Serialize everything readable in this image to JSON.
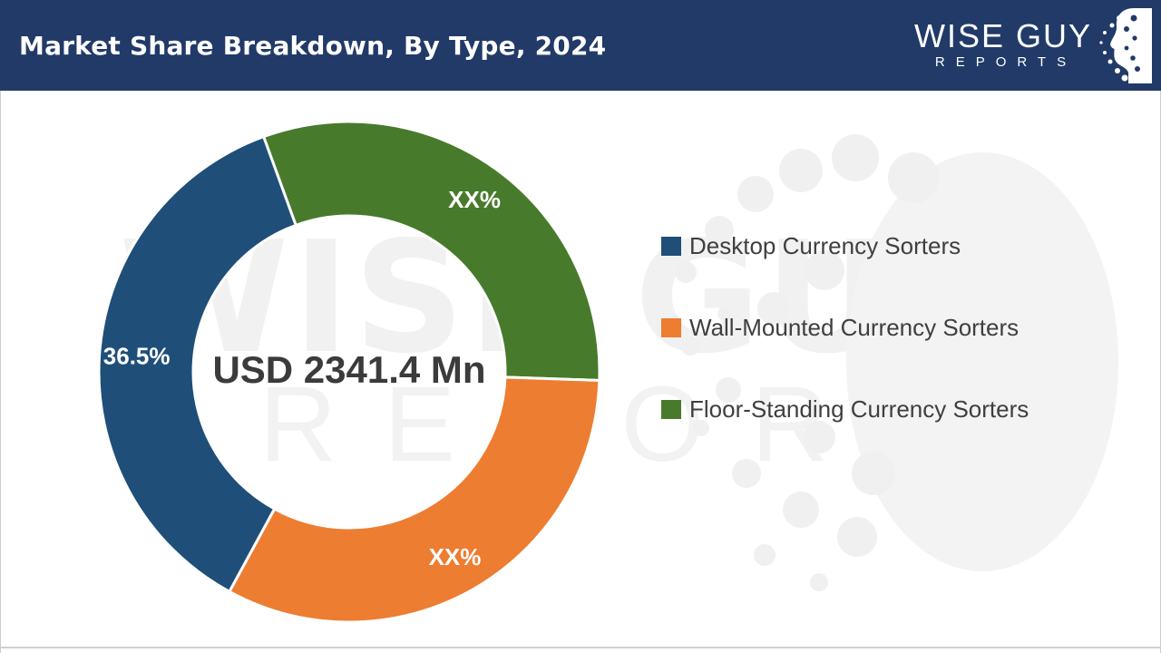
{
  "header": {
    "title": "Market Share Breakdown, By Type, 2024",
    "bg_color": "#213A68",
    "logo": {
      "line1": "WISE GUY",
      "line2": "REPORTS",
      "face_icon": "dotted-head-profile-icon"
    }
  },
  "watermark": {
    "line1": "WISE GUY",
    "line2": "REPORTS",
    "face_icon": "dotted-head-profile-watermark"
  },
  "chart_data": {
    "type": "pie",
    "subtype": "donut",
    "title": "Market Share Breakdown, By Type, 2024",
    "center_label": "USD 2341.4 Mn",
    "start_angle_deg": -20,
    "legend_position": "right",
    "gap_color": "#ffffff",
    "segments": [
      {
        "name": "Floor-Standing Currency Sorters",
        "display_label": "XX%",
        "share_pct_est": 31.1,
        "color": "#487A2B",
        "label_color": "#ffffff"
      },
      {
        "name": "Wall-Mounted Currency Sorters",
        "display_label": "XX%",
        "share_pct_est": 32.4,
        "color": "#ED7D31",
        "label_color": "#ffffff"
      },
      {
        "name": "Desktop Currency Sorters",
        "display_label": "36.5%",
        "share_pct_est": 36.5,
        "color": "#1F4E79",
        "label_color": "#ffffff"
      }
    ],
    "legend": [
      {
        "label": "Desktop Currency Sorters",
        "color": "#1F4E79"
      },
      {
        "label": "Wall-Mounted Currency Sorters",
        "color": "#ED7D31"
      },
      {
        "label": "Floor-Standing Currency Sorters",
        "color": "#487A2B"
      }
    ]
  }
}
